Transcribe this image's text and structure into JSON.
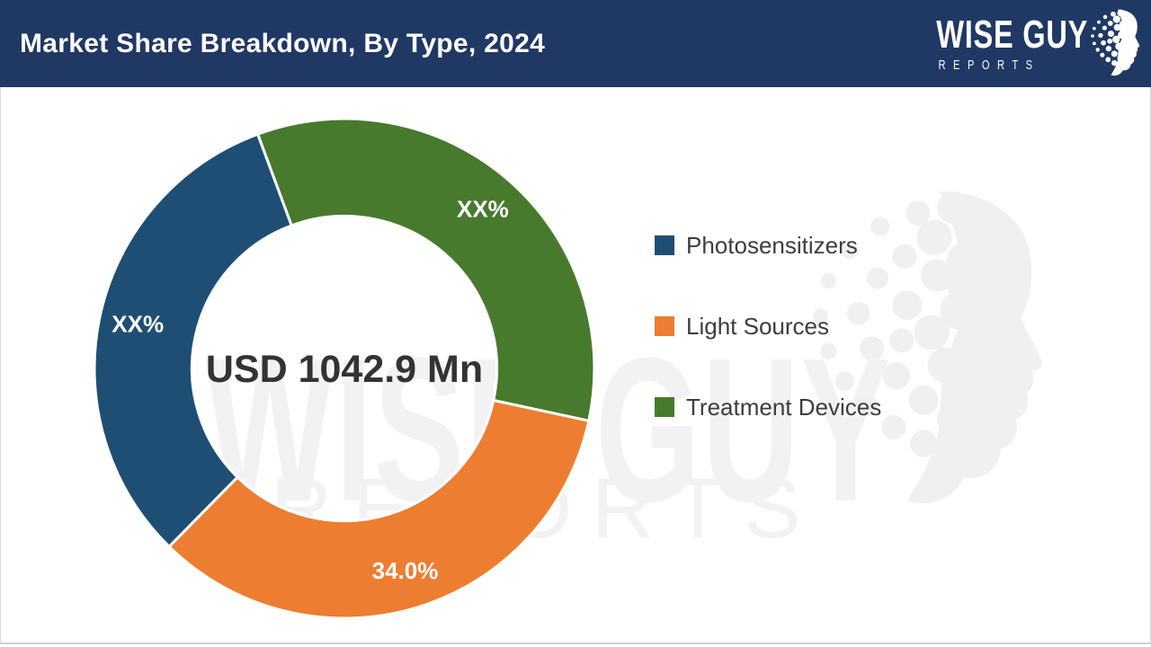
{
  "header": {
    "title": "Market Share Breakdown, By Type, 2024",
    "logo": {
      "wordmark": "WISE GUY",
      "subtext": "REPORTS"
    }
  },
  "watermark": {
    "line1": "WISE GUY",
    "line2": "REPORTS"
  },
  "chart_data": {
    "type": "donut",
    "title": "Market Share Breakdown, By Type, 2024",
    "center_label": "USD 1042.9 Mn",
    "start_angle_deg": -20.3,
    "inner_radius_ratio": 0.61,
    "legend_position": "right",
    "segments": [
      {
        "name": "Treatment Devices",
        "value": 34.0,
        "label": "XX%",
        "color": "#477A2D"
      },
      {
        "name": "Light Sources",
        "value": 34.0,
        "label": "34.0%",
        "color": "#ED7D31"
      },
      {
        "name": "Photosensitizers",
        "value": 32.0,
        "label": "XX%",
        "color": "#1F4E74"
      }
    ]
  },
  "legend": {
    "items": [
      {
        "label": "Photosensitizers",
        "color": "#1F4E74"
      },
      {
        "label": "Light Sources",
        "color": "#ED7D31"
      },
      {
        "label": "Treatment Devices",
        "color": "#477A2D"
      }
    ]
  },
  "colors": {
    "header_bg": "#203864",
    "center_text": "#333333",
    "watermark": "#f2f2f5"
  }
}
